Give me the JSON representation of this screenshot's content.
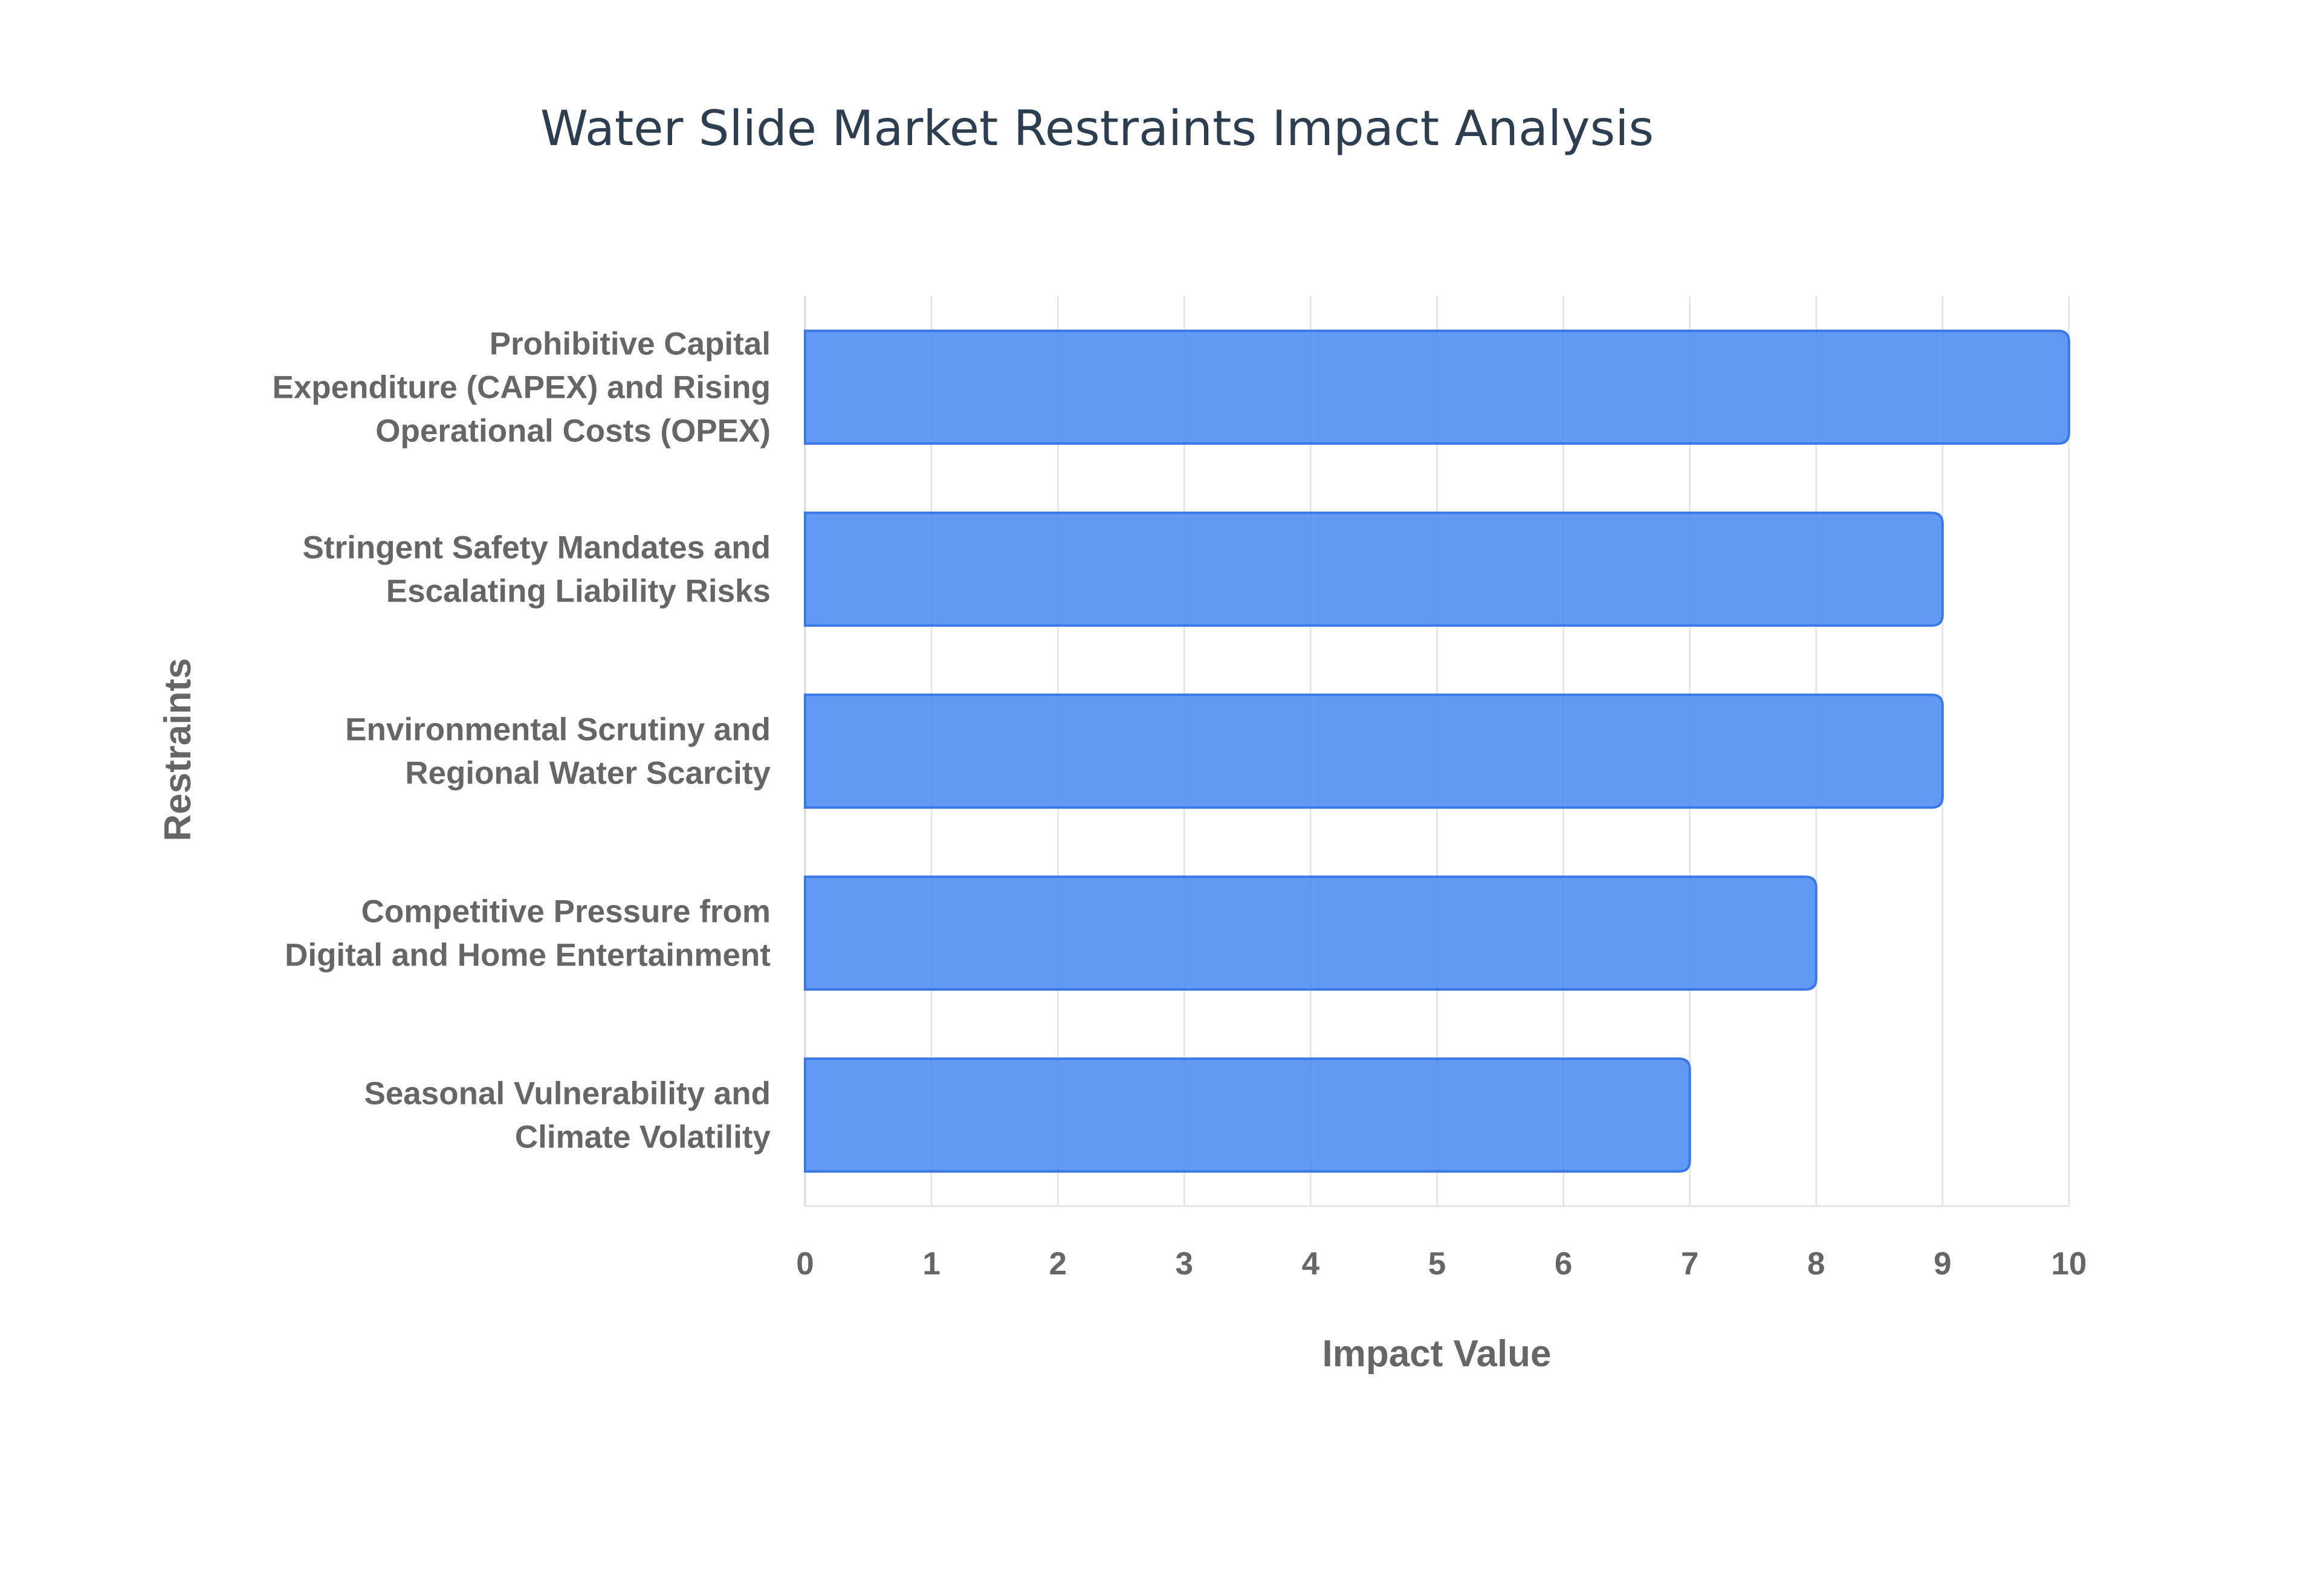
{
  "chart_data": {
    "type": "bar",
    "orientation": "horizontal",
    "title": "Water Slide Market Restraints Impact Analysis",
    "xlabel": "Impact Value",
    "ylabel": "Restraints",
    "xlim": [
      0,
      10
    ],
    "xticks": [
      "0",
      "1",
      "2",
      "3",
      "4",
      "5",
      "6",
      "7",
      "8",
      "9",
      "10"
    ],
    "grid": true,
    "categories": [
      [
        "Prohibitive Capital",
        "Expenditure (CAPEX) and Rising",
        "Operational Costs (OPEX)"
      ],
      [
        "Stringent Safety Mandates and",
        "Escalating Liability Risks"
      ],
      [
        "Environmental Scrutiny and",
        "Regional Water Scarcity"
      ],
      [
        "Competitive Pressure from",
        "Digital and Home Entertainment"
      ],
      [
        "Seasonal Vulnerability and",
        "Climate Volatility"
      ]
    ],
    "values": [
      10,
      9,
      9,
      8,
      7
    ],
    "colors": {
      "bar_fill": "#4285f4",
      "bar_stroke": "#3b78e7",
      "title": "#2c3e50",
      "label": "#666666",
      "grid": "#e6e6e6"
    }
  }
}
